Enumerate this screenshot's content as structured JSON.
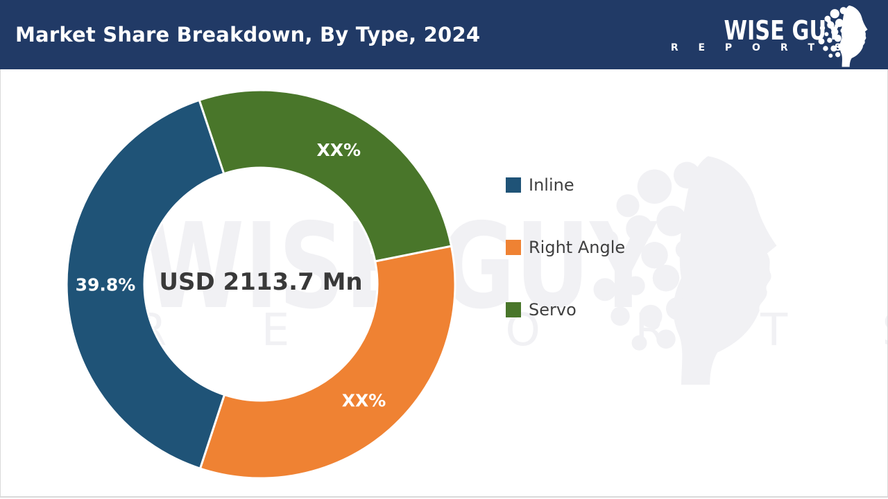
{
  "header": {
    "title": "Market Share Breakdown, By Type, 2024",
    "logo": {
      "name": "WISE GUY",
      "reports": "R E P O R T S"
    }
  },
  "chart_data": {
    "type": "donut",
    "title": "Market Share Breakdown, By Type, 2024",
    "center_label": "USD 2113.7 Mn",
    "start_angle_deg": -18.5,
    "direction": "clockwise",
    "inner_radius_ratio": 0.6,
    "slices": [
      {
        "name": "Servo",
        "value_pct": 27.0,
        "display_label": "XX%",
        "color": "#49762a"
      },
      {
        "name": "Right Angle",
        "value_pct": 33.2,
        "display_label": "XX%",
        "color": "#ef8233"
      },
      {
        "name": "Inline",
        "value_pct": 39.8,
        "display_label": "39.8%",
        "color": "#1f5377"
      }
    ]
  },
  "legend": {
    "items": [
      {
        "label": "Inline",
        "color": "#1f5377"
      },
      {
        "label": "Right Angle",
        "color": "#ef8233"
      },
      {
        "label": "Servo",
        "color": "#49762a"
      }
    ]
  },
  "watermark": {
    "line1": "WISE GUY",
    "line2": "R E P O R T S"
  },
  "colors": {
    "header_bg": "#213a66",
    "text_dark": "#3f3f3f",
    "watermark": "#f1f1f4",
    "border": "#d9d9d9"
  }
}
